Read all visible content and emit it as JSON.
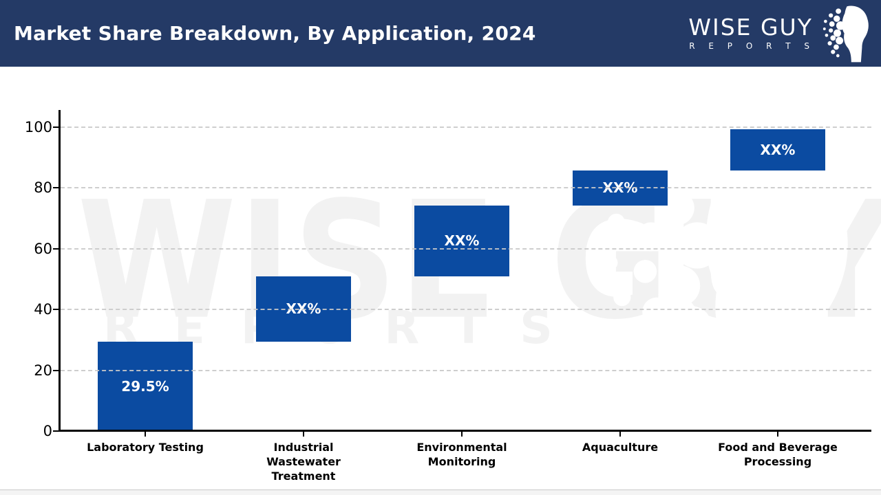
{
  "header": {
    "title": "Market Share Breakdown, By Application, 2024",
    "logo": {
      "line1": "WISE GUY",
      "line2": "R E P O R T S"
    }
  },
  "watermark": {
    "line1": "WISE GUY",
    "line2": "REPORTS"
  },
  "colors": {
    "header_bg": "#243a66",
    "bar": "#0b4ba1",
    "gridline": "#c9c9c9",
    "axis": "#000000",
    "bar_label_text": "#ffffff",
    "watermark": "#f2f2f2"
  },
  "chart_data": {
    "type": "bar",
    "subtype": "waterfall",
    "title": "Market Share Breakdown, By Application, 2024",
    "categories": [
      "Laboratory Testing",
      "Industrial\nWastewater\nTreatment",
      "Environmental\nMonitoring",
      "Aquaculture",
      "Food and Beverage\nProcessing"
    ],
    "segments": [
      {
        "start": 0,
        "end": 29.5,
        "value": 29.5,
        "label": "29.5%"
      },
      {
        "start": 29.5,
        "end": 51.0,
        "value": 21.5,
        "label": "XX%"
      },
      {
        "start": 51.0,
        "end": 74.2,
        "value": 23.2,
        "label": "XX%"
      },
      {
        "start": 74.2,
        "end": 85.8,
        "value": 11.6,
        "label": "XX%"
      },
      {
        "start": 85.8,
        "end": 99.3,
        "value": 13.5,
        "label": "XX%"
      }
    ],
    "yticks": [
      0,
      20,
      40,
      60,
      80,
      100
    ],
    "ylim": [
      0,
      105.5
    ],
    "xlabel": "",
    "ylabel": "",
    "grid": "horizontal-dashed",
    "legend": "none"
  }
}
